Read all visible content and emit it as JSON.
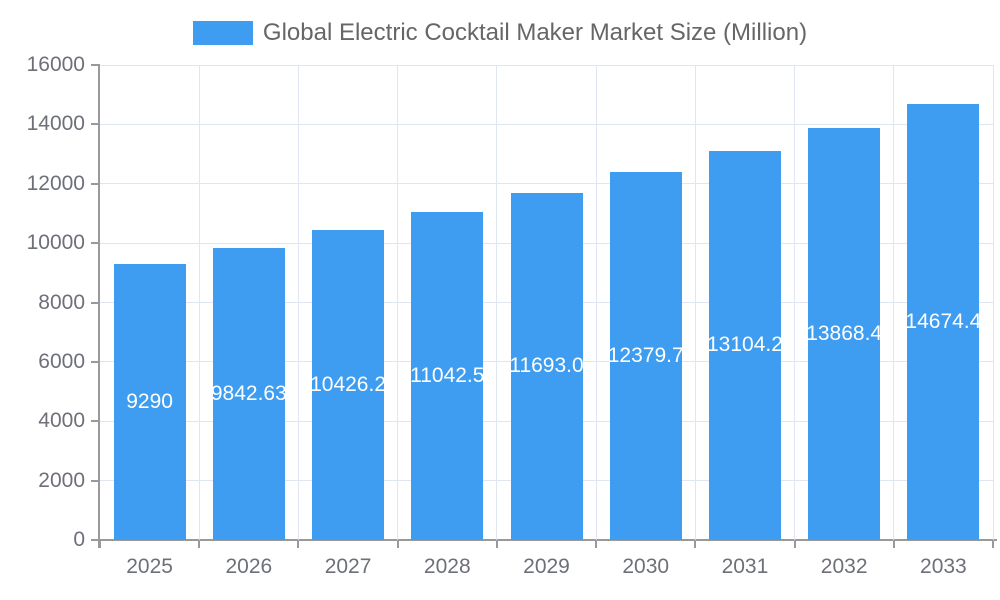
{
  "legend": {
    "series_label": "Global Electric Cocktail Maker Market Size (Million)"
  },
  "colors": {
    "bar": "#3E9DF0",
    "axis": "#999999",
    "axis_text": "#6E7079",
    "grid": "#E0E6F1",
    "bar_label_text": "#FFFFFF",
    "legend_text": "#666666",
    "background": "#FFFFFF"
  },
  "chart_data": {
    "type": "bar",
    "title": "Global Electric Cocktail Maker Market Size (Million)",
    "categories": [
      "2025",
      "2026",
      "2027",
      "2028",
      "2029",
      "2030",
      "2031",
      "2032",
      "2033"
    ],
    "values": [
      9290,
      9842.63,
      10426.2,
      11042.5,
      11693.0,
      12379.7,
      13104.2,
      13868.4,
      14674.4
    ],
    "value_labels": [
      "9290",
      "9842.63",
      "10426.2",
      "11042.5",
      "11693.0",
      "12379.7",
      "13104.2",
      "13868.4",
      "14674.4"
    ],
    "yticks": [
      0,
      2000,
      4000,
      6000,
      8000,
      10000,
      12000,
      14000,
      16000
    ],
    "ylim": [
      0,
      16000
    ],
    "xlabel": "",
    "ylabel": "",
    "grid": true,
    "legend_position": "top-center",
    "label_position": "inside-center"
  }
}
